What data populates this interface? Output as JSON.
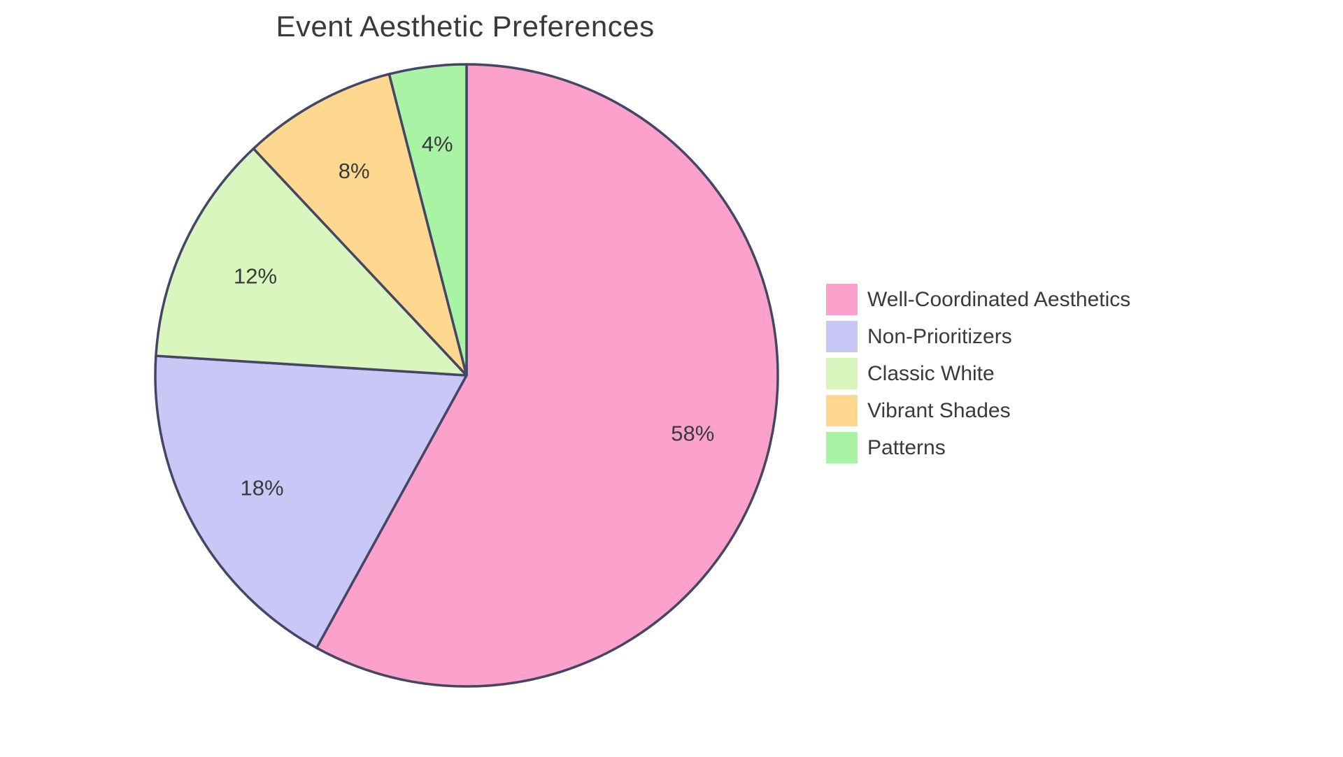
{
  "page": {
    "background_color": "#ffffff"
  },
  "chart_data": {
    "type": "pie",
    "title": "Event Aesthetic Preferences",
    "categories": [
      "Well-Coordinated Aesthetics",
      "Non-Prioritizers",
      "Classic White",
      "Vibrant Shades",
      "Patterns"
    ],
    "values": [
      58,
      18,
      12,
      8,
      4
    ],
    "slice_labels": [
      "58%",
      "18%",
      "12%",
      "8%",
      "4%"
    ],
    "colors": [
      "#fba1cc",
      "#c9c7f6",
      "#d9f6be",
      "#ffd88f",
      "#a9f4a4"
    ],
    "stroke_color": "#454564",
    "label_text_color": "#3a3a3a",
    "legend_position": "right",
    "start_angle_deg": -90,
    "direction": "clockwise",
    "grid": false
  }
}
